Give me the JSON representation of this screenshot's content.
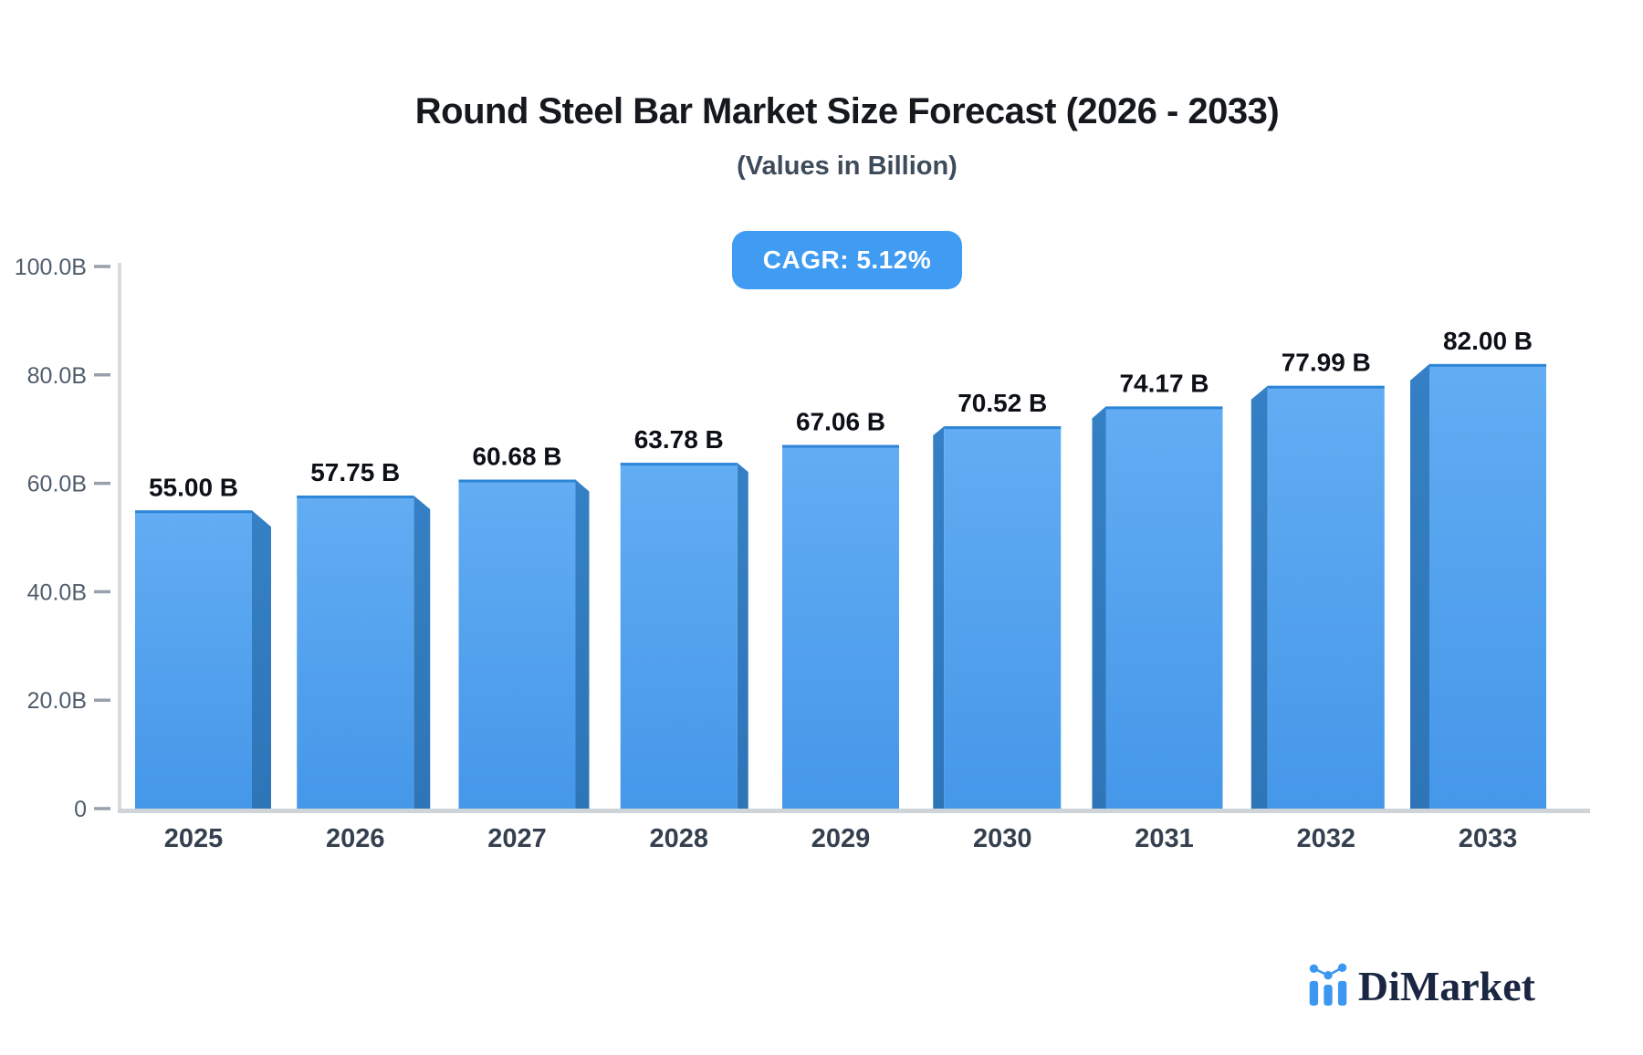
{
  "header": {
    "title": "Round Steel Bar Market Size Forecast (2026 - 2033)",
    "subtitle": "(Values in Billion)",
    "cagr_badge": "CAGR: 5.12%"
  },
  "footer": {
    "brand": "DiMarket",
    "brand_icon": "mini-bar-chart-icon"
  },
  "colors": {
    "badge_bg": "#3F9CF2",
    "badge_text": "#FFFFFF",
    "bar_front_top": "#62ADF3",
    "bar_front_bottom": "#4597E9",
    "bar_side": "#2E75B8",
    "bar_top_edge": "#2F85D6",
    "axis_line": "#D7DBE0",
    "baseline": "#CFD4D9",
    "tick_dash": "#97A0AB",
    "tick_text": "#515D6B",
    "year_text": "#35404F",
    "value_text": "#0D1117",
    "brand_text": "#1B2742",
    "brand_icon": "#3D97F0"
  },
  "chart_data": {
    "type": "bar",
    "style": "3d-extruded-bars-center-perspective",
    "title": "Round Steel Bar Market Size Forecast (2026 - 2033)",
    "subtitle": "(Values in Billion)",
    "annotation": "CAGR: 5.12%",
    "categories": [
      "2025",
      "2026",
      "2027",
      "2028",
      "2029",
      "2030",
      "2031",
      "2032",
      "2033"
    ],
    "values": [
      55.0,
      57.75,
      60.68,
      63.78,
      67.06,
      70.52,
      74.17,
      77.99,
      82.0
    ],
    "value_labels": [
      "55.00 B",
      "57.75 B",
      "60.68 B",
      "63.78 B",
      "67.06 B",
      "70.52 B",
      "74.17 B",
      "77.99 B",
      "82.00 B"
    ],
    "xlabel": "",
    "ylabel": "",
    "ylim": [
      0,
      100
    ],
    "yticks": [
      0,
      20,
      40,
      60,
      80,
      100
    ],
    "ytick_labels": [
      "0",
      "20.0B",
      "40.0B",
      "60.0B",
      "80.0B",
      "100.0B"
    ],
    "grid": false,
    "legend": false
  }
}
